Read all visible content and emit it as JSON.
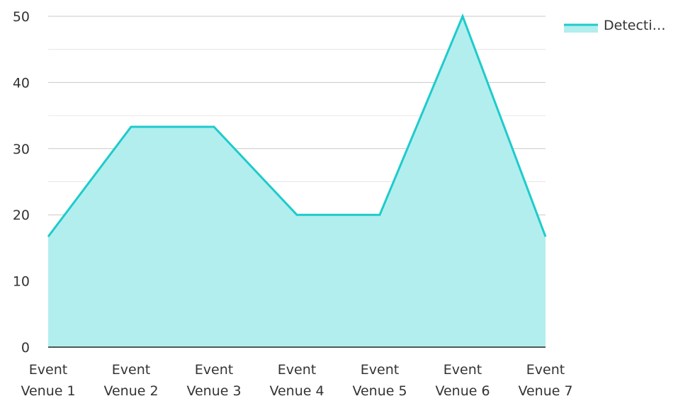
{
  "chart_data": {
    "type": "area",
    "categories": [
      [
        "Event",
        "Venue 1"
      ],
      [
        "Event",
        "Venue 2"
      ],
      [
        "Event",
        "Venue 3"
      ],
      [
        "Event",
        "Venue 4"
      ],
      [
        "Event",
        "Venue 5"
      ],
      [
        "Event",
        "Venue 6"
      ],
      [
        "Event",
        "Venue 7"
      ]
    ],
    "series": [
      {
        "name": "Detecti…",
        "values": [
          16.7,
          33.3,
          33.3,
          20,
          20,
          50,
          16.7
        ]
      }
    ],
    "ylim": [
      0,
      50
    ],
    "y_ticks": [
      0,
      10,
      20,
      30,
      40,
      50
    ],
    "grid": true,
    "legend": "top-right",
    "colors": {
      "line": "#1ECBCB",
      "fill": "#B2EEEE",
      "grid_major": "#C8C8C8",
      "grid_minor": "#E6E6E6",
      "axis": "#222222"
    }
  }
}
